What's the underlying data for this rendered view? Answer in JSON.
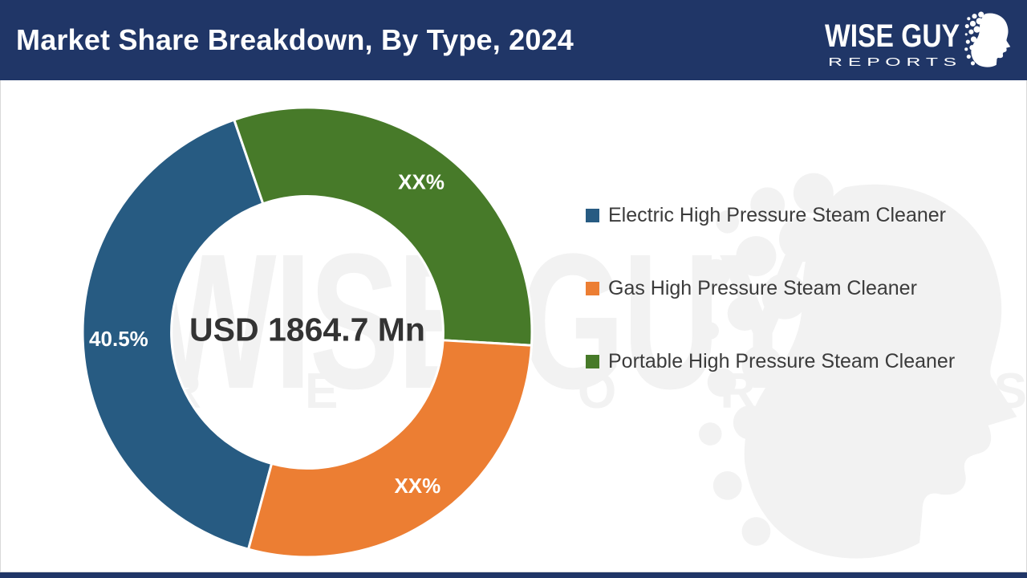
{
  "header": {
    "title": "Market Share Breakdown, By Type, 2024",
    "bg_color": "#203667",
    "logo": {
      "line1": "WISE GUY",
      "line2": "R E P O R T S"
    }
  },
  "watermark": {
    "line1": "WISE GUY",
    "line2": "R E P O R T S"
  },
  "chart_data": {
    "type": "donut",
    "title": "Market Share Breakdown, By Type, 2024",
    "center_label": "USD 1864.7 Mn",
    "slices": [
      {
        "name": "Electric High Pressure Steam Cleaner",
        "color": "#275b82",
        "value": 40.5,
        "label": "40.5%"
      },
      {
        "name": "Gas High Pressure Steam Cleaner",
        "color": "#ec7e33",
        "value": 28.3,
        "label": "XX%"
      },
      {
        "name": "Portable High Pressure Steam Cleaner",
        "color": "#477a29",
        "value": 31.2,
        "label": "XX%"
      }
    ],
    "start_angle_deg": 195.2,
    "draw_order": [
      0,
      2,
      1
    ],
    "inner_radius_ratio": 0.605,
    "legend_position": "right",
    "colors": {
      "separator": "#ffffff",
      "center_text": "#333333",
      "label_text": "#ffffff"
    }
  }
}
